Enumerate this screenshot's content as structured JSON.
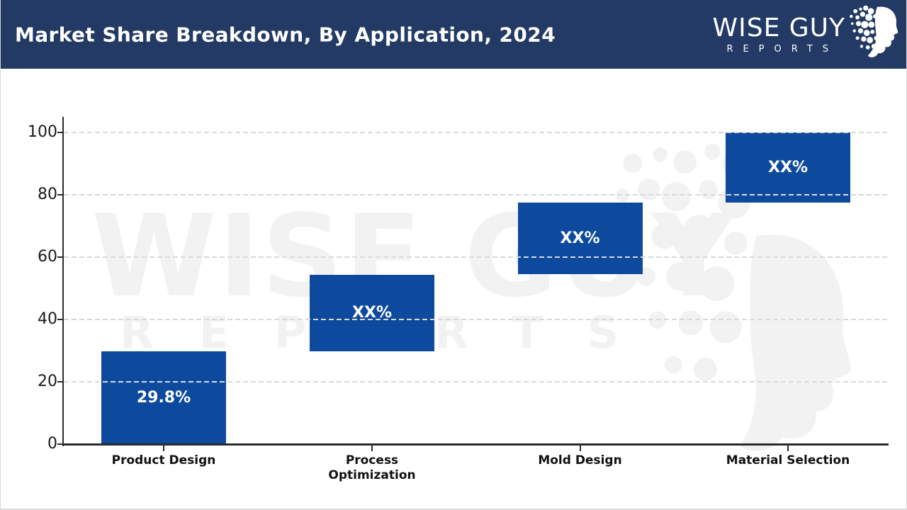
{
  "header": {
    "title": "Market Share Breakdown, By Application, 2024"
  },
  "logo": {
    "line1": "WISE GUY",
    "line2": "REPORTS",
    "face_icon": "dotted-head-profile"
  },
  "watermark": {
    "line1": "WISE GUY",
    "line2": "REPORTS",
    "face_icon": "dotted-head-profile"
  },
  "colors": {
    "header_bg": "#223a64",
    "bar_blue": "#0d4a9e",
    "grid_gray": "#d9d9d9",
    "axis_dark": "#2b2b2b",
    "watermark_gray": "#f2f2f2",
    "bar_label_white": "#ffffff"
  },
  "chart_data": {
    "type": "bar",
    "subtype": "waterfall",
    "title": "Market Share Breakdown, By Application, 2024",
    "xlabel": "",
    "ylabel": "",
    "categories": [
      "Product Design",
      "Process\nOptimization",
      "Mold Design",
      "Material Selection"
    ],
    "segments": [
      {
        "category": "Product Design",
        "start": 0,
        "end": 29.8,
        "label": "29.8%"
      },
      {
        "category": "Process Optimization",
        "start": 29.8,
        "end": 54.4,
        "label": "XX%"
      },
      {
        "category": "Mold Design",
        "start": 54.5,
        "end": 77.6,
        "label": "XX%"
      },
      {
        "category": "Material Selection",
        "start": 77.6,
        "end": 100,
        "label": "XX%"
      }
    ],
    "yticks": [
      0,
      20,
      40,
      60,
      80,
      100
    ],
    "ylim": [
      0,
      105
    ],
    "grid": "horizontal-dashed, drawn over bars",
    "legend": "none",
    "bar_color": "#0d4a9e",
    "label_color": "#ffffff"
  }
}
